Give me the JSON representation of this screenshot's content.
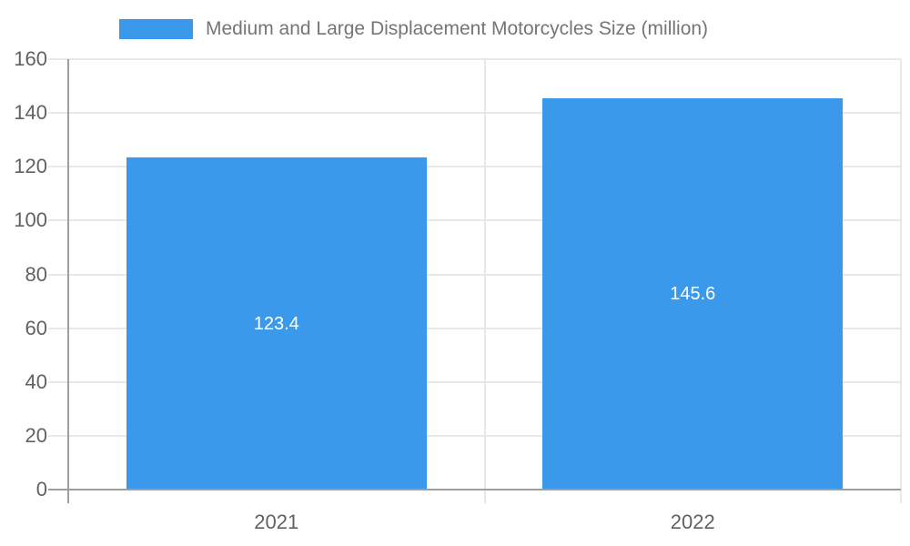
{
  "chart_data": {
    "type": "bar",
    "title": "Medium and Large Displacement Motorcycles Size (million)",
    "categories": [
      "2021",
      "2022"
    ],
    "values": [
      123.4,
      145.6
    ],
    "value_labels": [
      "123.4",
      "145.6"
    ],
    "xlabel": "",
    "ylabel": "",
    "ylim": [
      0,
      160
    ],
    "yticks": [
      0,
      20,
      40,
      60,
      80,
      100,
      120,
      140,
      160
    ],
    "grid": true,
    "legend": {
      "label": "Medium and Large Displacement Motorcycles Size (million)",
      "position": "top"
    },
    "colors": {
      "bar": "#3B99EC",
      "axis_line": "#9E9E9E",
      "gridline": "#E8E8E8",
      "axis_text": "#616161",
      "legend_text": "#757575",
      "value_text": "#FFFFFF",
      "background": "#FFFFFF"
    }
  }
}
